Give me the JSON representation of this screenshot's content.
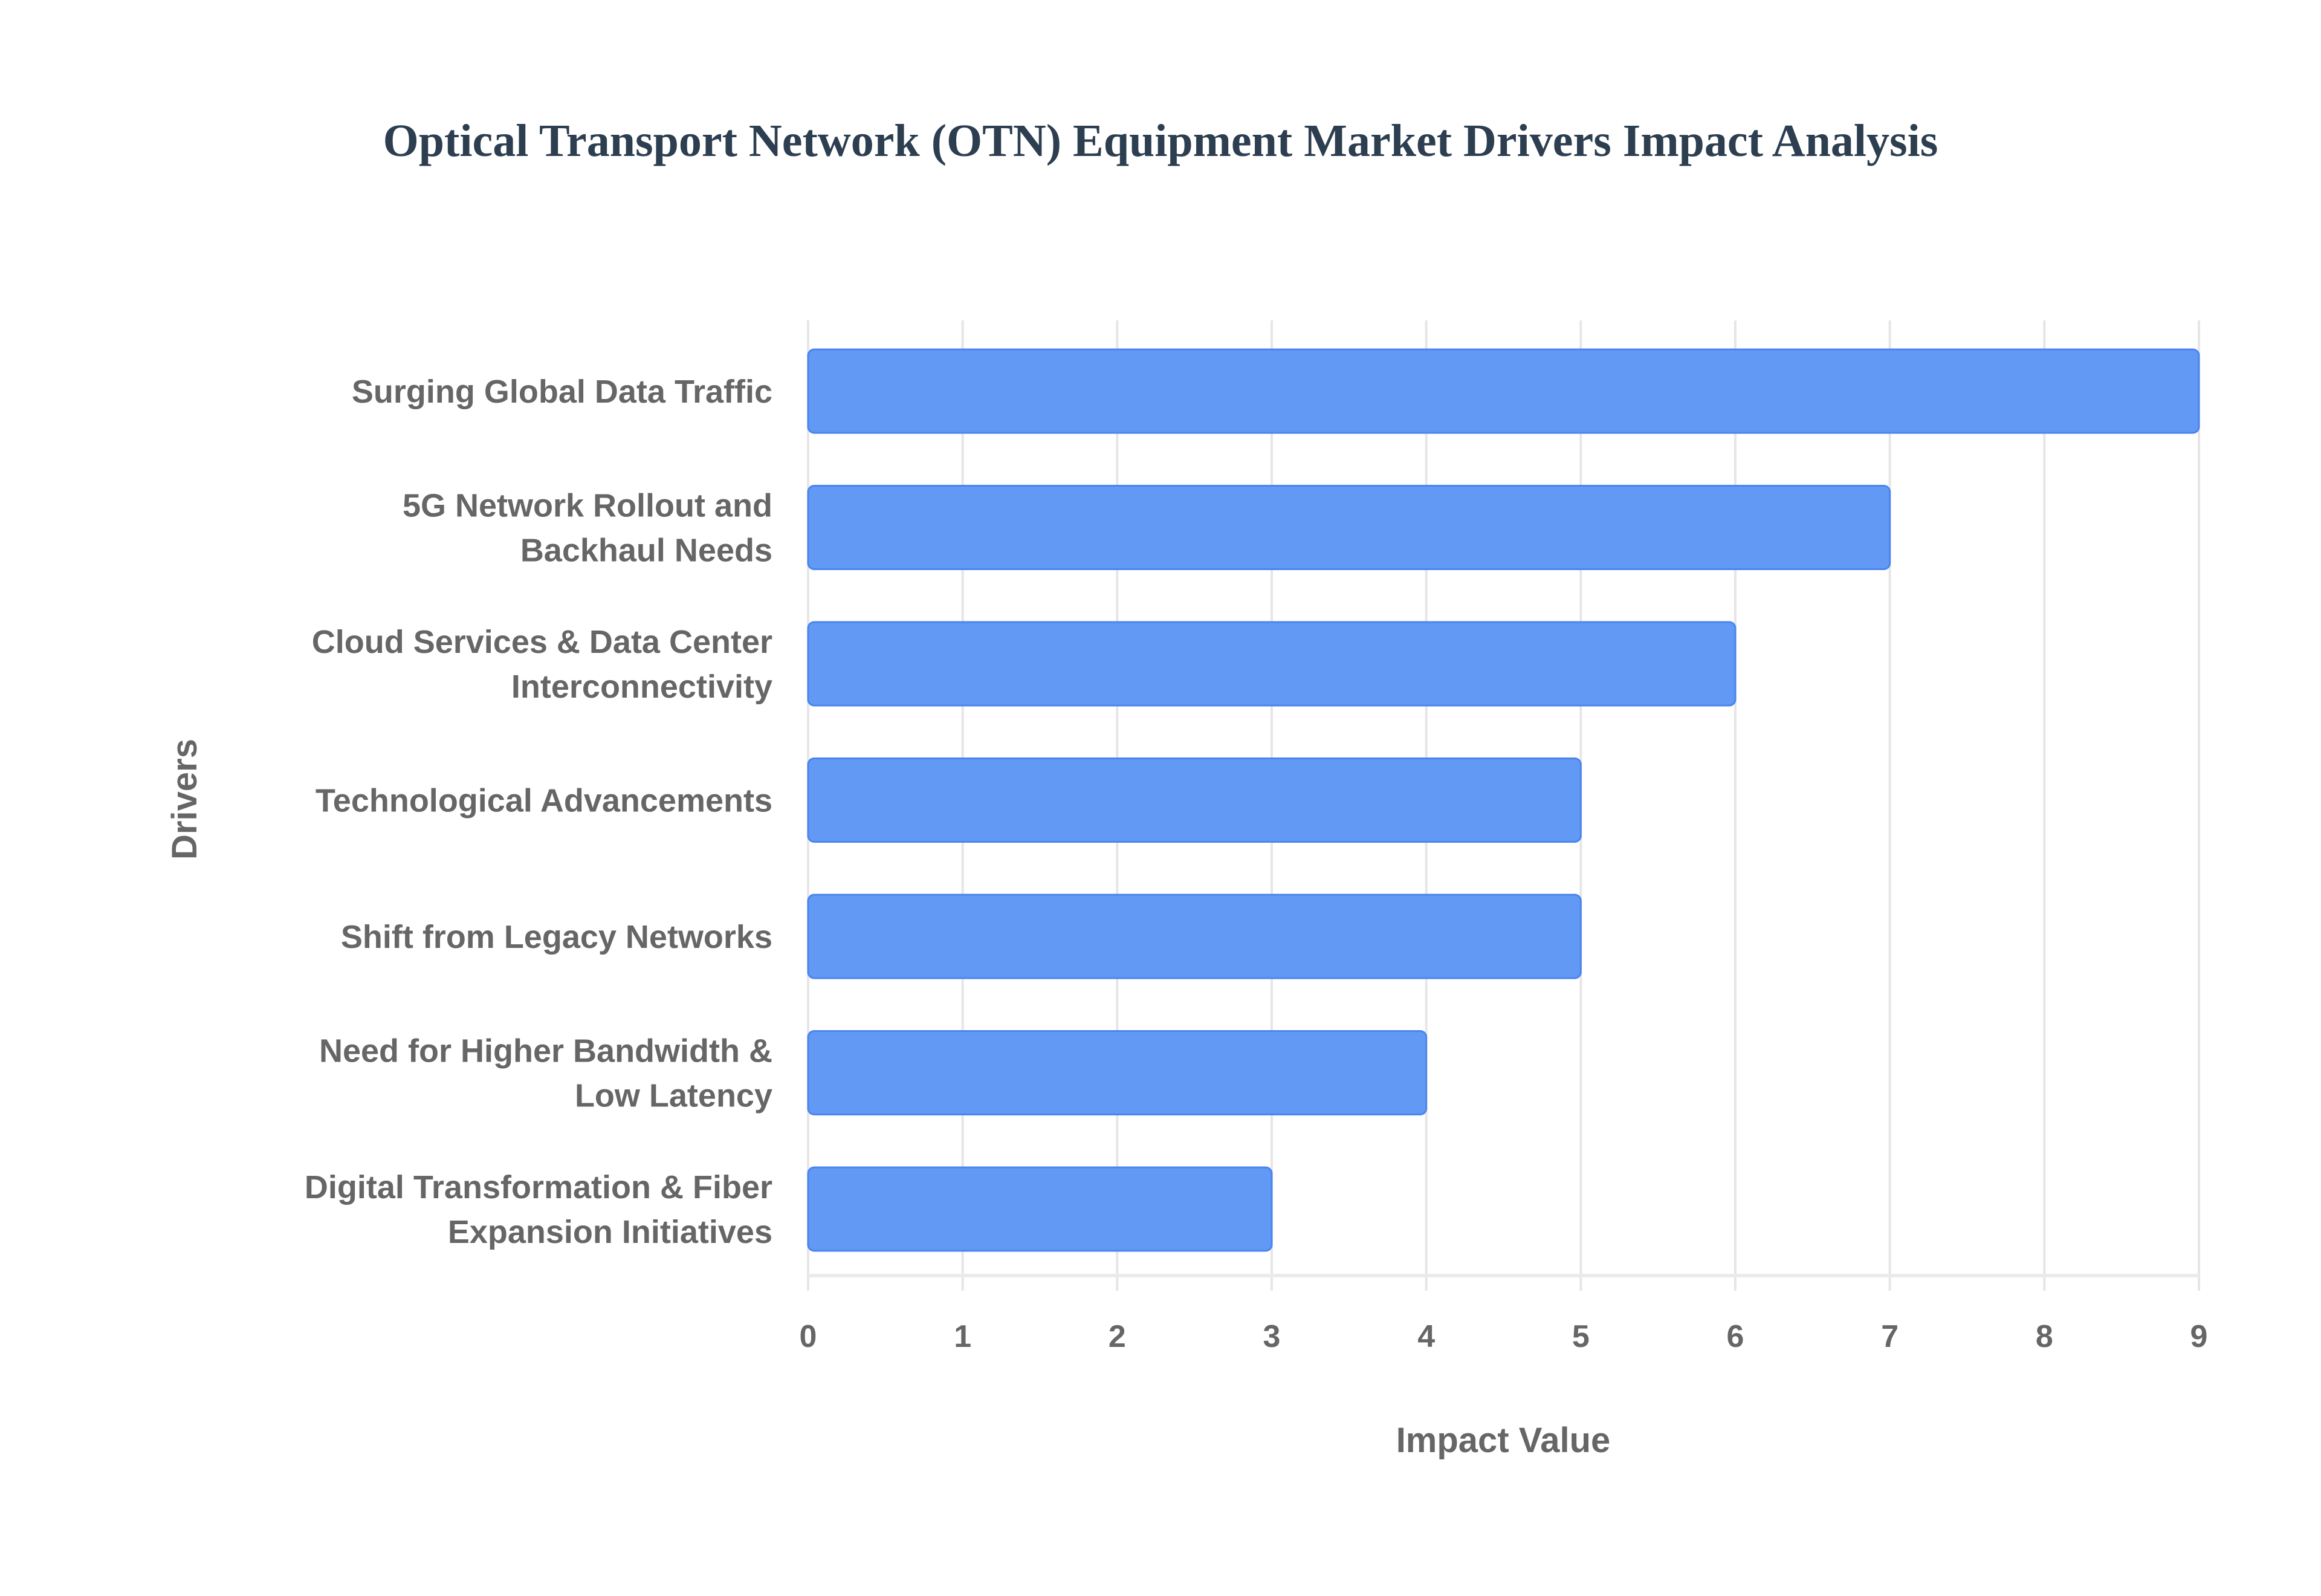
{
  "chart_data": {
    "type": "bar",
    "orientation": "horizontal",
    "title": "Optical Transport Network (OTN) Equipment Market Drivers Impact Analysis",
    "xlabel": "Impact Value",
    "ylabel": "Drivers",
    "categories": [
      [
        "Surging Global Data Traffic"
      ],
      [
        "5G Network Rollout and",
        "Backhaul Needs"
      ],
      [
        "Cloud Services & Data Center",
        "Interconnectivity"
      ],
      [
        "Technological Advancements"
      ],
      [
        "Shift from Legacy Networks"
      ],
      [
        "Need for Higher Bandwidth &",
        "Low Latency"
      ],
      [
        "Digital Transformation & Fiber",
        "Expansion Initiatives"
      ]
    ],
    "values": [
      9,
      7,
      6,
      5,
      5,
      4,
      3
    ],
    "xlim": [
      0,
      9
    ],
    "xticks": [
      "0",
      "1",
      "2",
      "3",
      "4",
      "5",
      "6",
      "7",
      "8",
      "9"
    ],
    "grid": true,
    "legend": "none",
    "colors": {
      "bar_fill": "#6199f5",
      "bar_border": "#4a85ee",
      "grid": "#e6e6e6",
      "text": "#666666",
      "title": "#2c3e50"
    }
  }
}
